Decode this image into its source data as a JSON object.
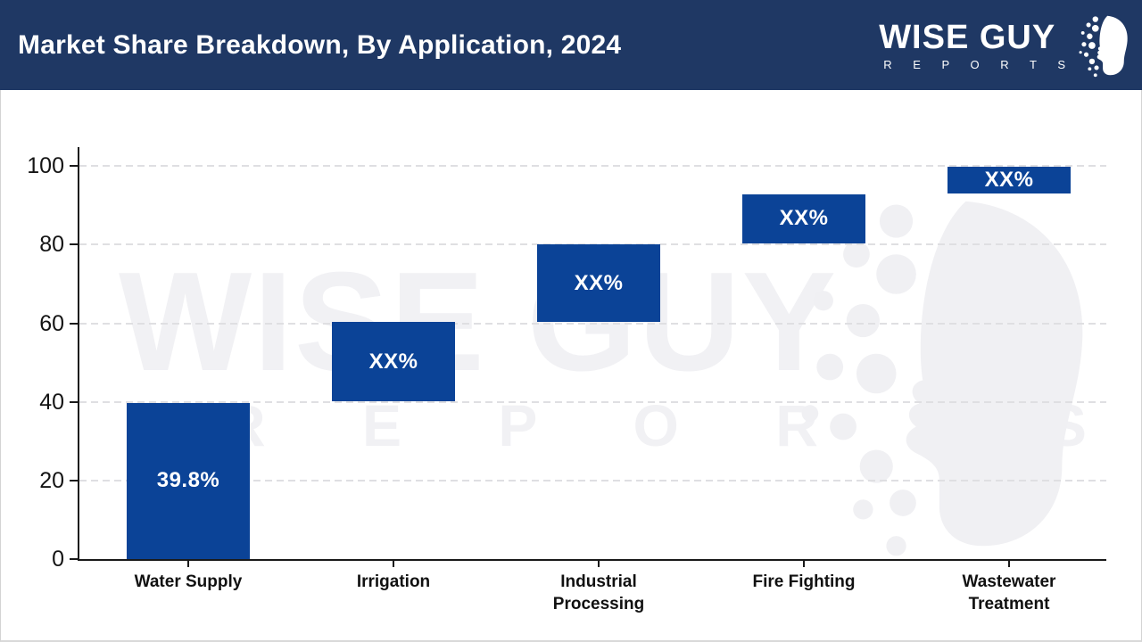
{
  "header": {
    "title": "Market Share Breakdown, By Application, 2024",
    "background_color": "#1f3864",
    "logo": {
      "brand_line1": "WISE GUY",
      "brand_line2": "R E P O R T S",
      "head_icon": "dotted-head-profile"
    }
  },
  "watermark": {
    "line1": "WISE GUY",
    "line2": "R E P O R T S",
    "head_icon": "dotted-head-profile"
  },
  "chart_data": {
    "type": "bar",
    "subtype": "waterfall",
    "title": "Market Share Breakdown, By Application, 2024",
    "xlabel": "",
    "ylabel": "",
    "ylim": [
      0,
      100
    ],
    "yticks": [
      0,
      20,
      40,
      60,
      80,
      100
    ],
    "grid": "dashed-horizontal",
    "legend": "none",
    "bar_color": "#0b4397",
    "bar_label_color": "#ffffff",
    "categories": [
      "Water Supply",
      "Irrigation",
      "Industrial Processing",
      "Fire Fighting",
      "Wastewater Treatment"
    ],
    "category_lines": [
      [
        "Water Supply"
      ],
      [
        "Irrigation"
      ],
      [
        "Industrial",
        "Processing"
      ],
      [
        "Fire Fighting"
      ],
      [
        "Wastewater",
        "Treatment"
      ]
    ],
    "segments": [
      {
        "category": "Water Supply",
        "label": "39.8%",
        "start": 0,
        "end": 39.8
      },
      {
        "category": "Irrigation",
        "label": "XX%",
        "start": 40.2,
        "end": 60.3
      },
      {
        "category": "Industrial Processing",
        "label": "XX%",
        "start": 60.3,
        "end": 80.1
      },
      {
        "category": "Fire Fighting",
        "label": "XX%",
        "start": 80.4,
        "end": 92.9
      },
      {
        "category": "Wastewater Treatment",
        "label": "XX%",
        "start": 93.0,
        "end": 99.9
      }
    ]
  }
}
